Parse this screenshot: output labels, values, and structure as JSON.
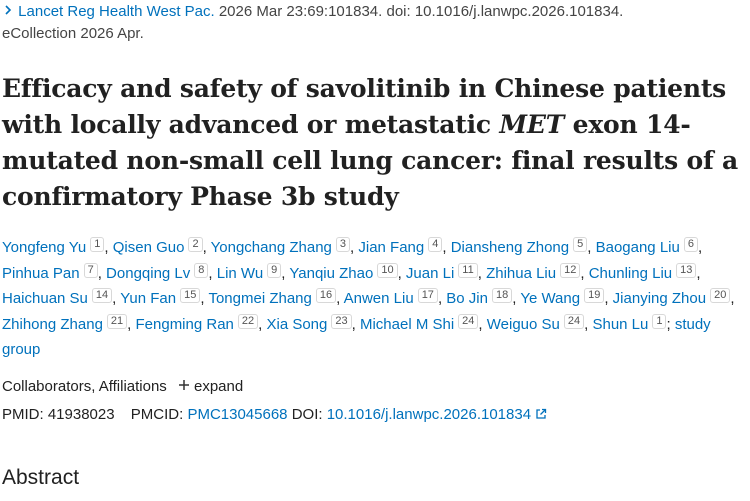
{
  "citation": {
    "journal": "Lancet Reg Health West Pac.",
    "details": "2026 Mar 23:69:101834. doi: 10.1016/j.lanwpc.2026.101834.",
    "ecollection": "eCollection 2026 Apr."
  },
  "title": {
    "before": "Efficacy and safety of savolitinib in Chinese patients with locally advanced or metastatic ",
    "italic": "MET",
    "after": " exon 14-mutated non-small cell lung cancer: final results of a confirmatory Phase 3b study"
  },
  "authors": {
    "separator": ",",
    "group_separator": ";",
    "group": "study group",
    "list": [
      {
        "name": "Yongfeng Yu",
        "aff": "1"
      },
      {
        "name": "Qisen Guo",
        "aff": "2"
      },
      {
        "name": "Yongchang Zhang",
        "aff": "3"
      },
      {
        "name": "Jian Fang",
        "aff": "4"
      },
      {
        "name": "Diansheng Zhong",
        "aff": "5"
      },
      {
        "name": "Baogang Liu",
        "aff": "6"
      },
      {
        "name": "Pinhua Pan",
        "aff": "7"
      },
      {
        "name": "Dongqing Lv",
        "aff": "8"
      },
      {
        "name": "Lin Wu",
        "aff": "9"
      },
      {
        "name": "Yanqiu Zhao",
        "aff": "10"
      },
      {
        "name": "Juan Li",
        "aff": "11"
      },
      {
        "name": "Zhihua Liu",
        "aff": "12"
      },
      {
        "name": "Chunling Liu",
        "aff": "13"
      },
      {
        "name": "Haichuan Su",
        "aff": "14"
      },
      {
        "name": "Yun Fan",
        "aff": "15"
      },
      {
        "name": "Tongmei Zhang",
        "aff": "16"
      },
      {
        "name": "Anwen Liu",
        "aff": "17"
      },
      {
        "name": "Bo Jin",
        "aff": "18"
      },
      {
        "name": "Ye Wang",
        "aff": "19"
      },
      {
        "name": "Jianying Zhou",
        "aff": "20"
      },
      {
        "name": "Zhihong Zhang",
        "aff": "21"
      },
      {
        "name": "Fengming Ran",
        "aff": "22"
      },
      {
        "name": "Xia Song",
        "aff": "23"
      },
      {
        "name": "Michael M Shi",
        "aff": "24"
      },
      {
        "name": "Weiguo Su",
        "aff": "24"
      },
      {
        "name": "Shun Lu",
        "aff": "1"
      }
    ]
  },
  "collaborators": {
    "label": "Collaborators, Affiliations",
    "expand": "expand"
  },
  "ids": {
    "pmid_label": "PMID:",
    "pmid": "41938023",
    "pmcid_label": "PMCID:",
    "pmcid": "PMC13045668",
    "doi_label": "DOI:",
    "doi": "10.1016/j.lanwpc.2026.101834"
  },
  "abstract_heading": "Abstract"
}
